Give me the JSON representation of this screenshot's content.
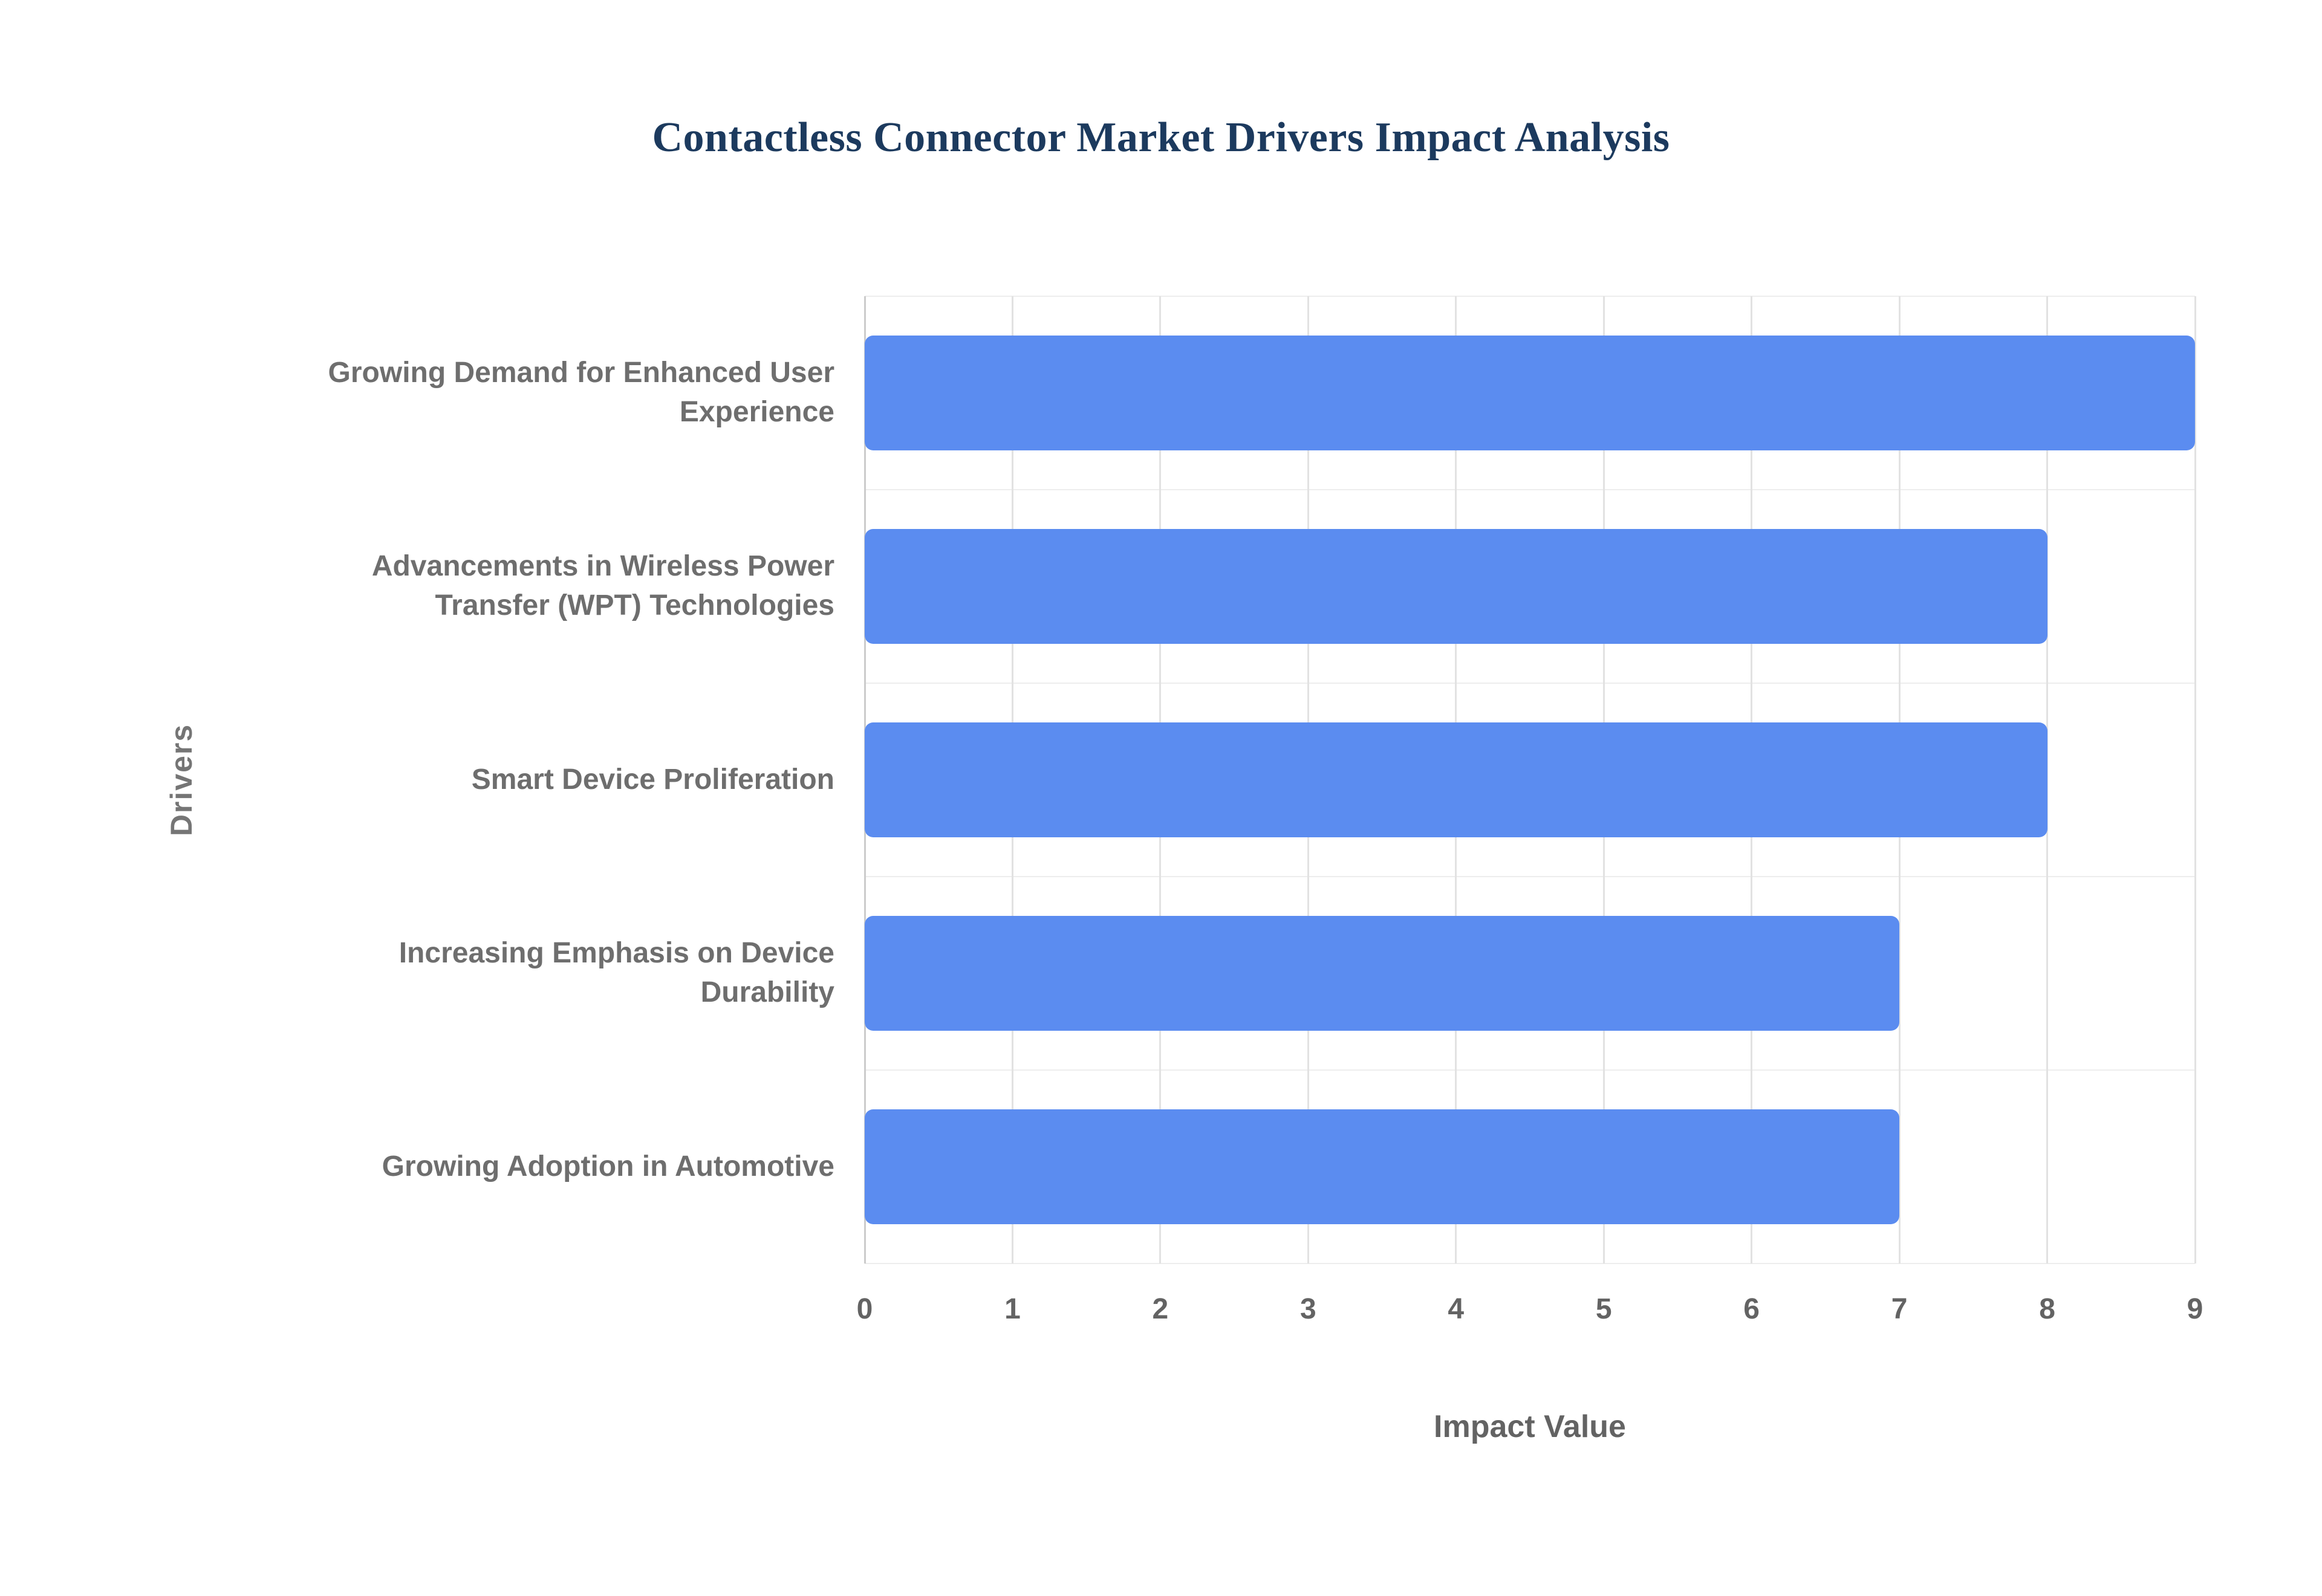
{
  "chart_data": {
    "type": "bar",
    "orientation": "horizontal",
    "title": "Contactless Connector Market Drivers Impact Analysis",
    "xlabel": "Impact Value",
    "ylabel": "Drivers",
    "categories": [
      "Growing Demand for Enhanced User Experience",
      "Advancements in Wireless Power Transfer (WPT) Technologies",
      "Smart Device Proliferation",
      "Increasing Emphasis on Device Durability",
      "Growing Adoption in Automotive"
    ],
    "values": [
      9,
      8,
      8,
      7,
      7
    ],
    "xlim": [
      0,
      9
    ],
    "xticks": [
      0,
      1,
      2,
      3,
      4,
      5,
      6,
      7,
      8,
      9
    ],
    "grid": true,
    "legend": false,
    "colors": {
      "bar": "#5b8cf0",
      "title_text": "#1c3a5e",
      "axis_text": "#636363",
      "category_text": "#6e6e6e",
      "gridline": "#e2e2e2",
      "axis_line": "#cccccc",
      "band_line": "#ededed",
      "background": "#ffffff"
    }
  }
}
